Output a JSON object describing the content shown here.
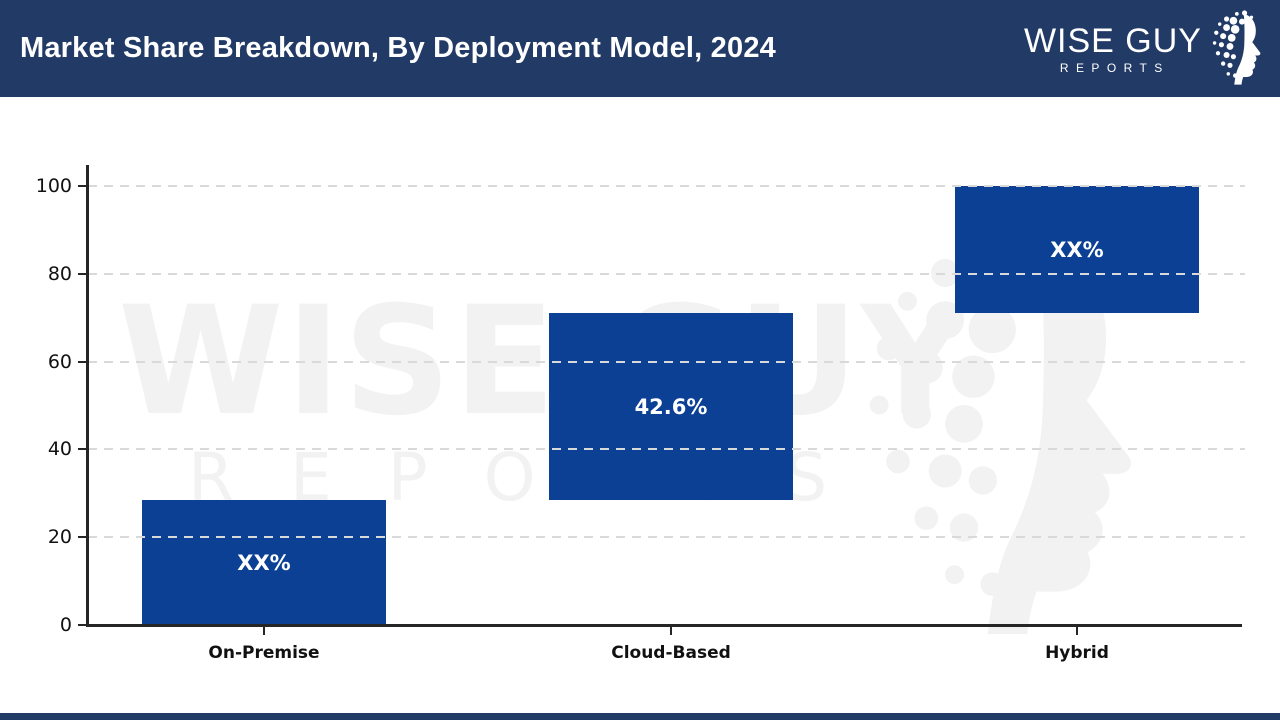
{
  "header": {
    "title": "Market Share Breakdown, By Deployment Model, 2024",
    "logo": {
      "line1": "WISE GUY",
      "line2": "REPORTS"
    }
  },
  "watermark": {
    "line1": "WISE GUY",
    "line2": "REPORTS"
  },
  "colors": {
    "header_bg": "#213a66",
    "footer_bg": "#213a66",
    "bar": "#0b4095",
    "bar_label": "#ffffff",
    "axis": "#262626",
    "grid": "#d9d9d9",
    "watermark": "#f2f2f2"
  },
  "chart_data": {
    "type": "bar",
    "subtype": "waterfall-floating-bars",
    "title": "Market Share Breakdown, By Deployment Model, 2024",
    "categories": [
      "On-Premise",
      "Cloud-Based",
      "Hybrid"
    ],
    "segments": [
      {
        "category": "On-Premise",
        "start": 0,
        "end": 28.4,
        "label": "XX%"
      },
      {
        "category": "Cloud-Based",
        "start": 28.4,
        "end": 71,
        "label": "42.6%"
      },
      {
        "category": "Hybrid",
        "start": 71,
        "end": 100,
        "label": "XX%"
      }
    ],
    "ylim": [
      0,
      100
    ],
    "yticks": [
      0,
      20,
      40,
      60,
      80,
      100
    ],
    "xlabel": "",
    "ylabel": "",
    "grid": "horizontal-dashed",
    "legend": "none"
  }
}
